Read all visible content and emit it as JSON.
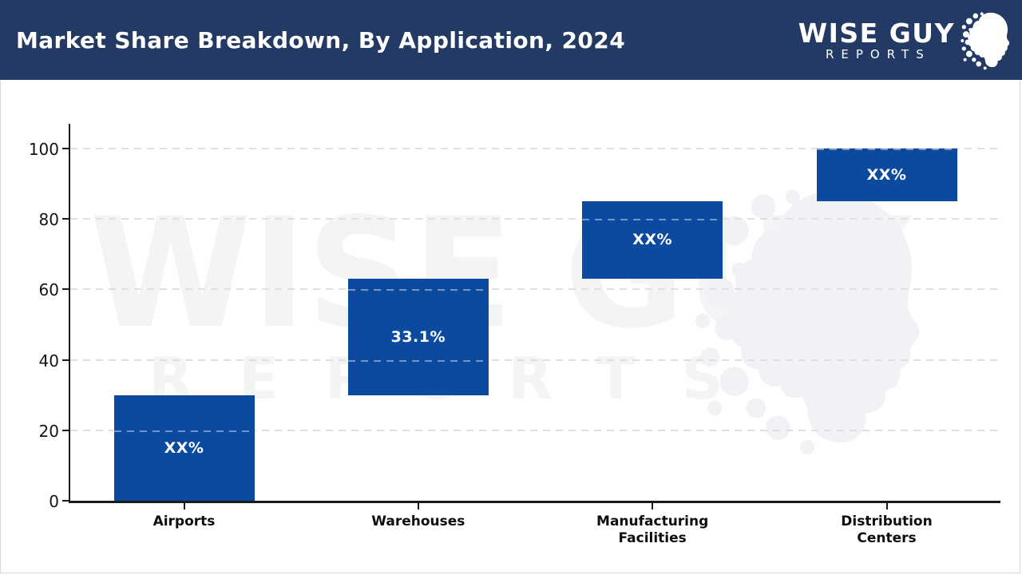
{
  "header": {
    "title": "Market Share Breakdown, By Application, 2024",
    "logo": {
      "wordmark": "WISE GUY",
      "subtext": "REPORTS"
    }
  },
  "watermark": {
    "line1": "WISE GUY",
    "line2": "REPORTS"
  },
  "icons": {
    "logo_head": "dotted-head-profile"
  },
  "colors": {
    "header_bg": "#233a64",
    "bar": "#0b4a9e",
    "axis": "#1a1a1a",
    "grid": "#dfdfdf",
    "watermark": "#f3f4f6"
  },
  "chart_data": {
    "type": "bar",
    "variant": "floating-waterfall",
    "title": "Market Share Breakdown, By Application, 2024",
    "categories": [
      "Airports",
      "Warehouses",
      "Manufacturing Facilities",
      "Distribution Centers"
    ],
    "series": [
      {
        "name": "Market Share",
        "segments": [
          {
            "category": "Airports",
            "start": 0,
            "end": 30,
            "value": 30,
            "label": "XX%"
          },
          {
            "category": "Warehouses",
            "start": 30,
            "end": 63.1,
            "value": 33.1,
            "label": "33.1%"
          },
          {
            "category": "Manufacturing Facilities",
            "start": 63.1,
            "end": 85.1,
            "value": 22,
            "label": "XX%"
          },
          {
            "category": "Distribution Centers",
            "start": 85.1,
            "end": 100,
            "value": 14.9,
            "label": "XX%"
          }
        ]
      }
    ],
    "xlabel": "",
    "ylabel": "",
    "ylim": [
      0,
      100
    ],
    "yticks": [
      0,
      20,
      40,
      60,
      80,
      100
    ],
    "grid": "dashed-horizontal",
    "legend": "none"
  }
}
